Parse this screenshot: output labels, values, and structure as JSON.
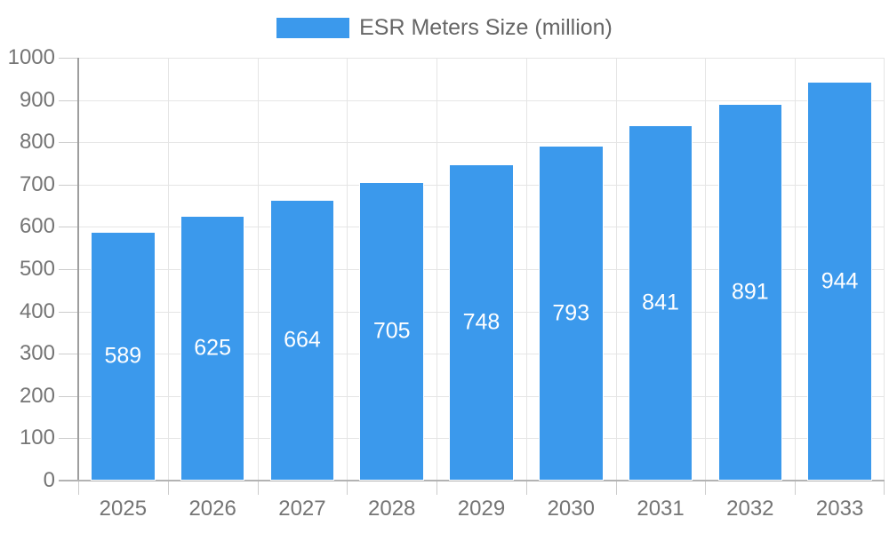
{
  "chart_data": {
    "type": "bar",
    "title": "",
    "legend_label": "ESR Meters Size (million)",
    "legend_position": "top-center",
    "categories": [
      "2025",
      "2026",
      "2027",
      "2028",
      "2029",
      "2030",
      "2031",
      "2032",
      "2033"
    ],
    "series": [
      {
        "name": "ESR Meters Size (million)",
        "values": [
          589,
          625,
          664,
          705,
          748,
          793,
          841,
          891,
          944
        ]
      }
    ],
    "xlabel": "",
    "ylabel": "",
    "ylim": [
      0,
      1000
    ],
    "ytick_step": 100,
    "grid": true,
    "value_labels": "inside-center",
    "colors": {
      "bar": "#3b99ec",
      "bar_border": "#ffffff",
      "grid": "#e5e5e5",
      "tick": "#cccccc",
      "y_axis": "#9e9e9e",
      "baseline": "#b3b3b3",
      "axis_text": "#757575",
      "legend_text": "#666666",
      "value_text": "#ffffff",
      "background": "#ffffff"
    }
  }
}
